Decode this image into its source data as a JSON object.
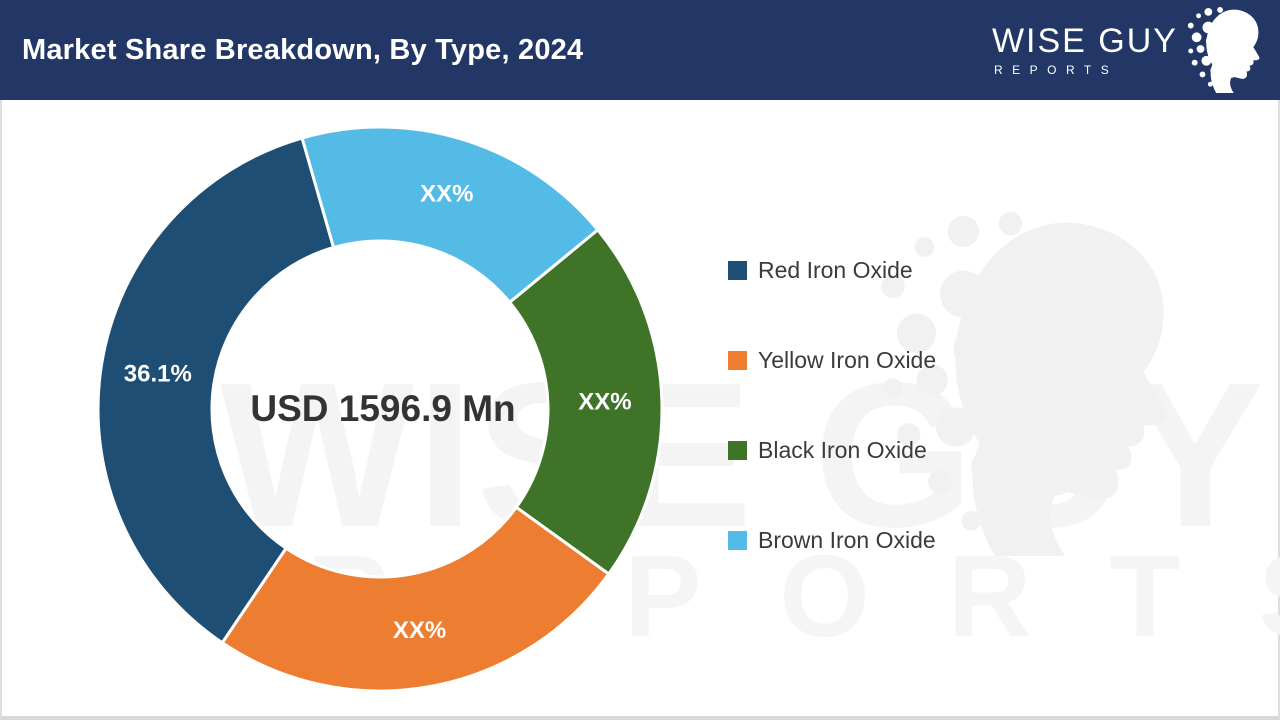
{
  "header": {
    "title": "Market Share Breakdown, By Type, 2024",
    "bg_color": "#223765",
    "logo": {
      "line1": "WISE GUY",
      "line2": "REPORTS"
    }
  },
  "watermark": {
    "line1": "WISE GUY",
    "line2": "REPORTS"
  },
  "chart_data": {
    "type": "pie",
    "subtype": "donut",
    "title": "Market Share Breakdown, By Type, 2024",
    "center_label": "USD 1596.9 Mn",
    "legend_position": "right",
    "start_angle_deg_cw_from_top": 214,
    "segments": [
      {
        "label": "Red Iron Oxide",
        "display_value": "36.1%",
        "share_pct": 36.1,
        "color": "#1F4E74"
      },
      {
        "label": "Brown Iron Oxide",
        "display_value": "XX%",
        "share_pct": 18.5,
        "color": "#53BBE5"
      },
      {
        "label": "Black Iron Oxide",
        "display_value": "XX%",
        "share_pct": 20.9,
        "color": "#3F7428"
      },
      {
        "label": "Yellow Iron Oxide",
        "display_value": "XX%",
        "share_pct": 24.5,
        "color": "#ED7D31"
      }
    ],
    "legend": [
      {
        "label": "Red Iron Oxide",
        "color": "#1F4E74"
      },
      {
        "label": "Yellow Iron Oxide",
        "color": "#ED7D31"
      },
      {
        "label": "Black Iron Oxide",
        "color": "#3F7428"
      },
      {
        "label": "Brown Iron Oxide",
        "color": "#53BBE5"
      }
    ]
  }
}
